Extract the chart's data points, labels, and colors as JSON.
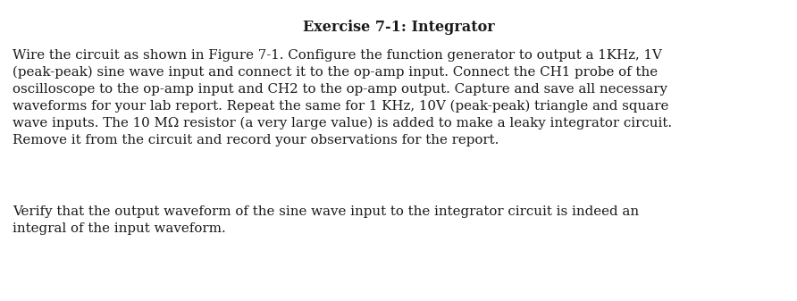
{
  "title": "Exercise 7-1: Integrator",
  "paragraph1": "Wire the circuit as shown in Figure 7-1. Configure the function generator to output a 1KHz, 1V\n(peak-peak) sine wave input and connect it to the op-amp input. Connect the CH1 probe of the\noscilloscope to the op-amp input and CH2 to the op-amp output. Capture and save all necessary\nwaveforms for your lab report. Repeat the same for 1 KHz, 10V (peak-peak) triangle and square\nwave inputs. The 10 MΩ resistor (a very large value) is added to make a leaky integrator circuit.\nRemove it from the circuit and record your observations for the report.",
  "paragraph2": "Verify that the output waveform of the sine wave input to the integrator circuit is indeed an\nintegral of the input waveform.",
  "bg_color": "#ffffff",
  "text_color": "#1a1a1a",
  "title_fontsize": 11.5,
  "body_fontsize": 10.8,
  "fig_width": 8.92,
  "fig_height": 3.37,
  "dpi": 100
}
